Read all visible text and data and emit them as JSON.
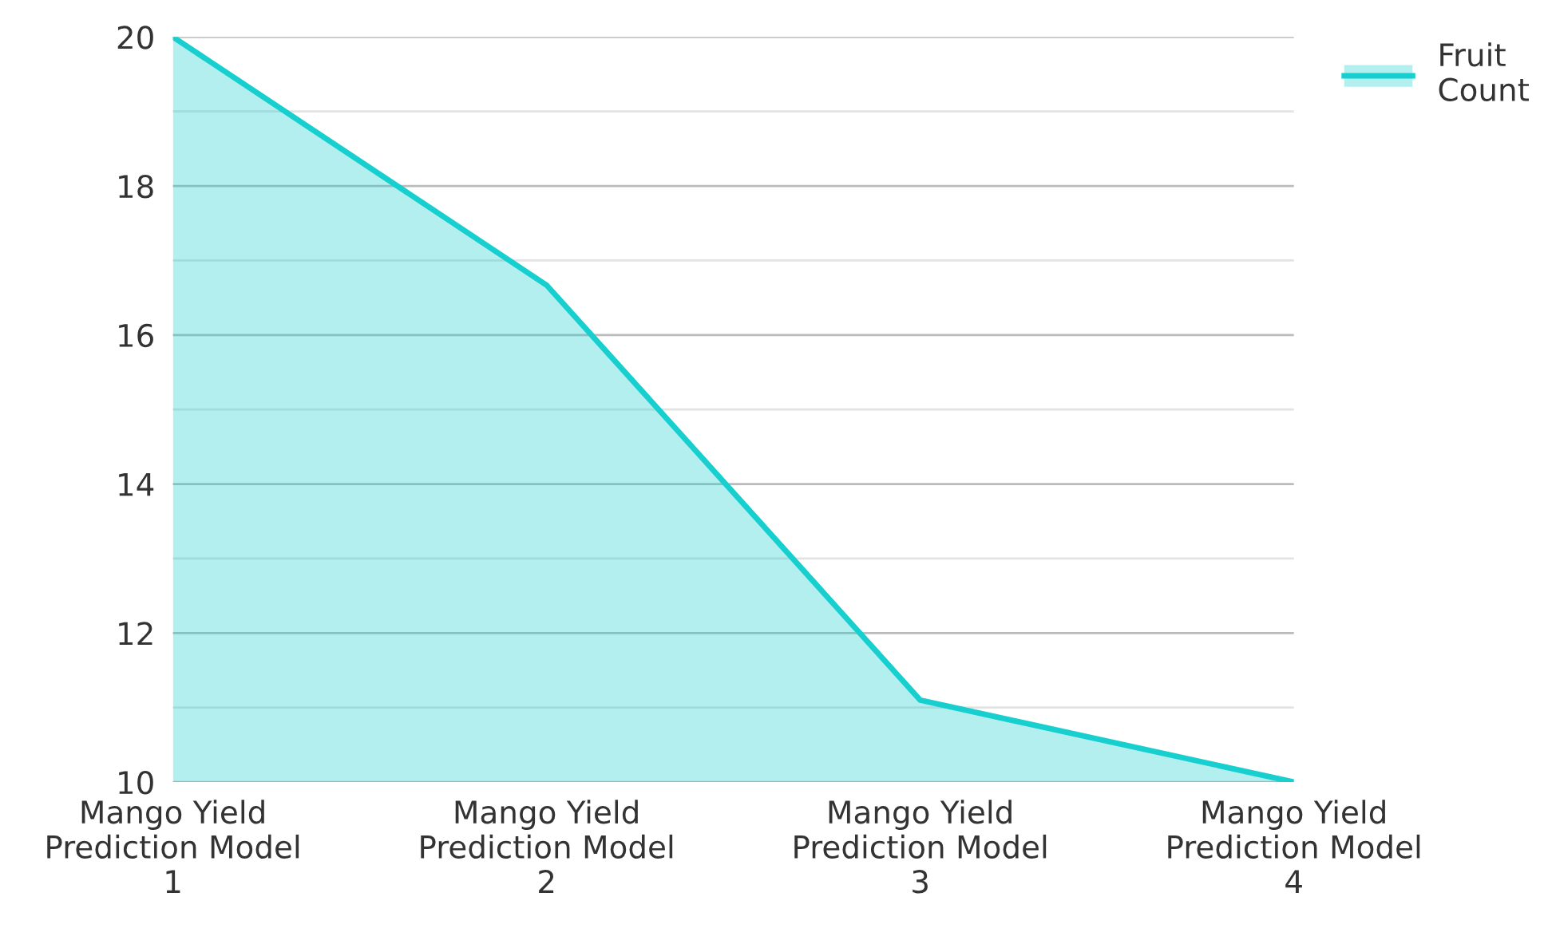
{
  "chart_data": {
    "type": "area",
    "categories": [
      "Mango Yield\nPrediction Model\n1",
      "Mango Yield\nPrediction Model\n2",
      "Mango Yield\nPrediction Model\n3",
      "Mango Yield\nPrediction Model\n4"
    ],
    "series": [
      {
        "name": "Fruit\nCount",
        "color": "#17cfcf",
        "values": [
          20,
          16.67,
          11.1,
          10
        ]
      }
    ],
    "ylim": [
      10,
      20
    ],
    "yticks": [
      10,
      12,
      14,
      16,
      18,
      20
    ],
    "grid": "y",
    "legend": "top right"
  }
}
